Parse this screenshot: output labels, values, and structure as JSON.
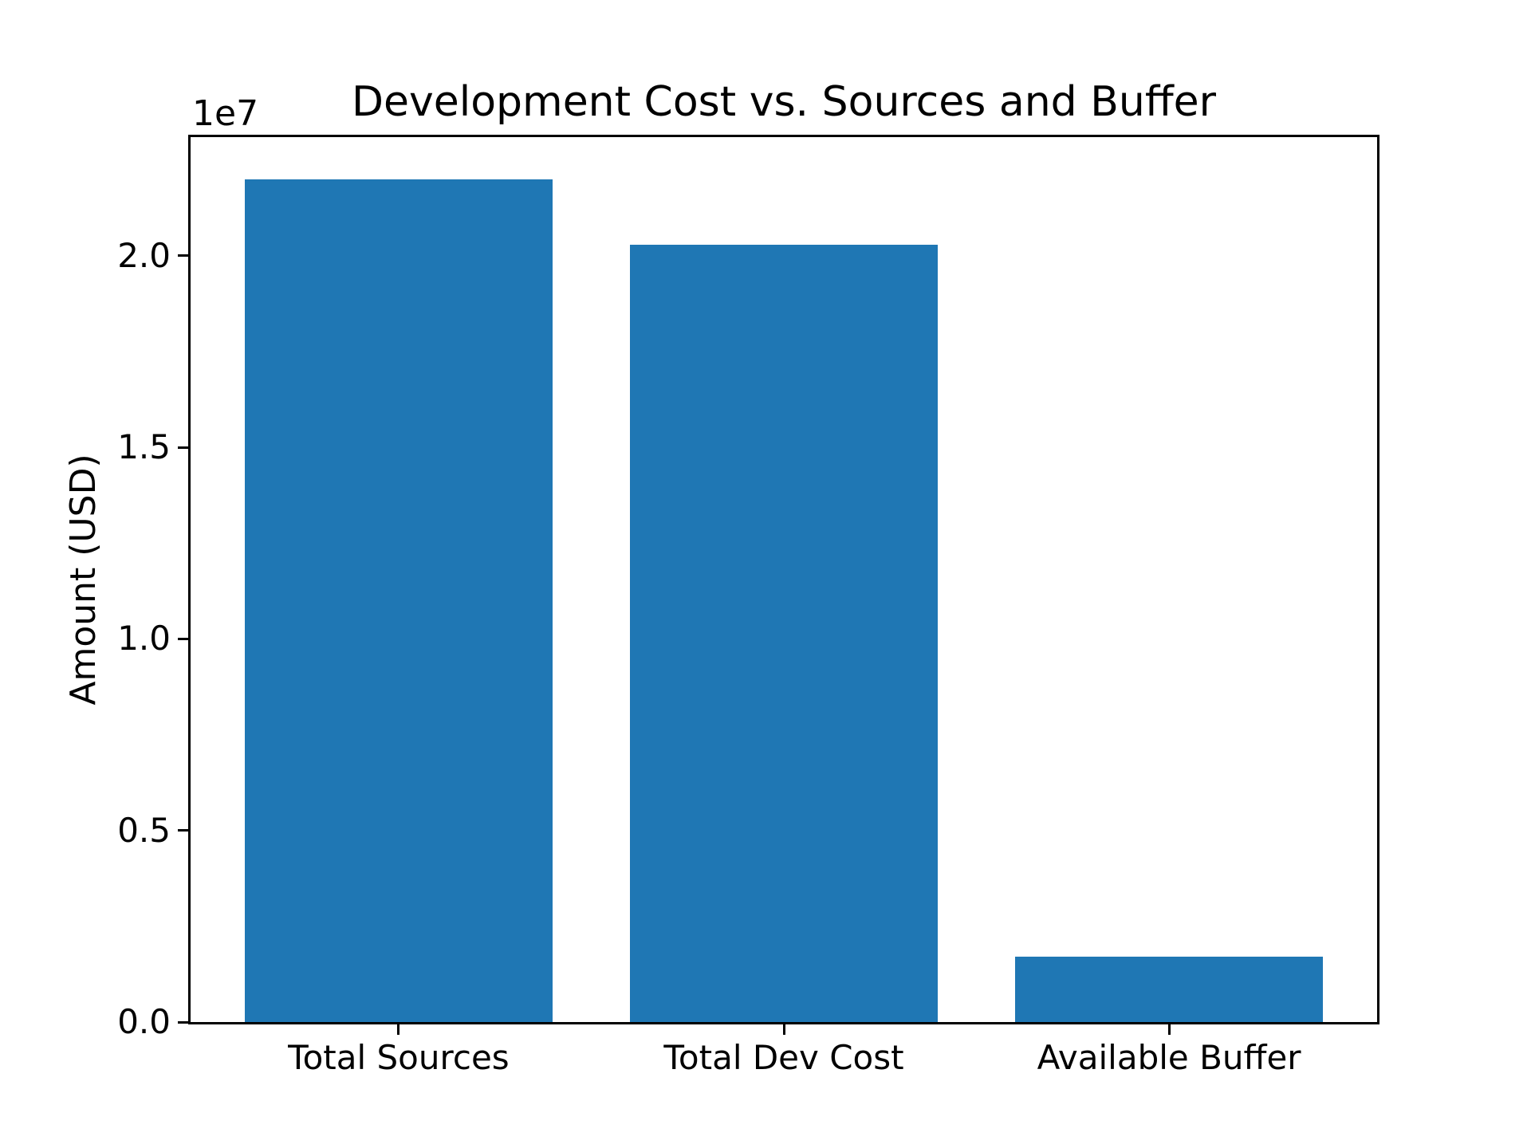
{
  "chart_data": {
    "type": "bar",
    "title": "Development Cost vs. Sources and Buffer",
    "categories": [
      "Total Sources",
      "Total Dev Cost",
      "Available Buffer"
    ],
    "values": [
      22000000,
      20300000,
      1700000
    ],
    "xlabel": "",
    "ylabel": "Amount (USD)",
    "ylim": [
      0,
      23100000
    ],
    "yticks": [
      0,
      5000000,
      10000000,
      15000000,
      20000000
    ],
    "ytick_labels": [
      "0.0",
      "0.5",
      "1.0",
      "1.5",
      "2.0"
    ],
    "offset_text": "1e7",
    "bar_color": "#1f77b4",
    "axis_color": "#000000",
    "background_color": "#ffffff",
    "grid": false,
    "legend_position": "none"
  }
}
